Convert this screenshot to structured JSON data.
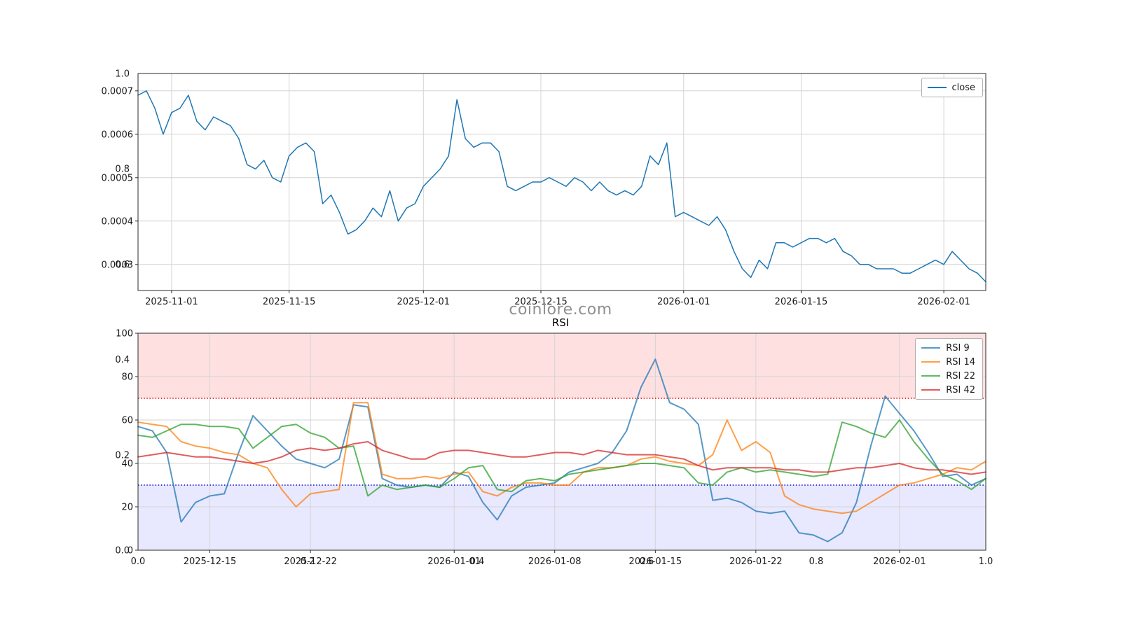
{
  "watermark": {
    "text": "coinlore.com"
  },
  "overlay_axis": {
    "yticks": [
      {
        "f": 1.0,
        "label": "1.0"
      },
      {
        "f": 0.8,
        "label": "0.8"
      },
      {
        "f": 0.6,
        "label": "0.6"
      },
      {
        "f": 0.4,
        "label": "0.4"
      },
      {
        "f": 0.2,
        "label": "0.2"
      },
      {
        "f": 0.0,
        "label": "0.0"
      }
    ],
    "xticks": [
      {
        "f": 0.0,
        "label": "0.0"
      },
      {
        "f": 0.2,
        "label": "0.2"
      },
      {
        "f": 0.4,
        "label": "0.4"
      },
      {
        "f": 0.6,
        "label": "0.6"
      },
      {
        "f": 0.8,
        "label": "0.8"
      },
      {
        "f": 1.0,
        "label": "1.0"
      }
    ]
  },
  "chart_data": [
    {
      "type": "line",
      "title": "",
      "x_range": [
        "2025-10-28",
        "2026-02-06"
      ],
      "ylim": [
        0.00024,
        0.00074
      ],
      "grid": true,
      "legend_position": "upper right",
      "yticks": [
        {
          "v": 0.0003,
          "label": "0.0003"
        },
        {
          "v": 0.0004,
          "label": "0.0004"
        },
        {
          "v": 0.0005,
          "label": "0.0005"
        },
        {
          "v": 0.0006,
          "label": "0.0006"
        },
        {
          "v": 0.0007,
          "label": "0.0007"
        }
      ],
      "xticks": [
        {
          "f": 0.0396,
          "label": "2025-11-01"
        },
        {
          "f": 0.1782,
          "label": "2025-11-15"
        },
        {
          "f": 0.3366,
          "label": "2025-12-01"
        },
        {
          "f": 0.4752,
          "label": "2025-12-15"
        },
        {
          "f": 0.6436,
          "label": "2026-01-01"
        },
        {
          "f": 0.7822,
          "label": "2026-01-15"
        },
        {
          "f": 0.9505,
          "label": "2026-02-01"
        }
      ],
      "legend": [
        {
          "label": "close",
          "color": "#1f77b4"
        }
      ],
      "series": [
        {
          "name": "close",
          "color": "#1f77b4",
          "width": 1.5,
          "values": [
            0.00069,
            0.0007,
            0.00066,
            0.0006,
            0.00065,
            0.00066,
            0.00069,
            0.00063,
            0.00061,
            0.00064,
            0.00063,
            0.00062,
            0.00059,
            0.00053,
            0.00052,
            0.00054,
            0.0005,
            0.00049,
            0.00055,
            0.00057,
            0.00058,
            0.00056,
            0.00044,
            0.00046,
            0.00042,
            0.00037,
            0.00038,
            0.0004,
            0.00043,
            0.00041,
            0.00047,
            0.0004,
            0.00043,
            0.00044,
            0.00048,
            0.0005,
            0.00052,
            0.00055,
            0.00068,
            0.00059,
            0.00057,
            0.00058,
            0.00058,
            0.00056,
            0.00048,
            0.00047,
            0.00048,
            0.00049,
            0.00049,
            0.0005,
            0.00049,
            0.00048,
            0.0005,
            0.00049,
            0.00047,
            0.00049,
            0.00047,
            0.00046,
            0.00047,
            0.00046,
            0.00048,
            0.00055,
            0.00053,
            0.00058,
            0.00041,
            0.00042,
            0.00041,
            0.0004,
            0.00039,
            0.00041,
            0.00038,
            0.00033,
            0.00029,
            0.00027,
            0.00031,
            0.00029,
            0.00035,
            0.00035,
            0.00034,
            0.00035,
            0.00036,
            0.00036,
            0.00035,
            0.00036,
            0.00033,
            0.00032,
            0.0003,
            0.0003,
            0.00029,
            0.00029,
            0.00029,
            0.00028,
            0.00028,
            0.00029,
            0.0003,
            0.00031,
            0.0003,
            0.00033,
            0.00031,
            0.00029,
            0.00028,
            0.00026
          ]
        }
      ]
    },
    {
      "type": "line",
      "title": "RSI",
      "x_range": [
        "2025-12-10",
        "2026-02-07"
      ],
      "ylim": [
        0,
        100
      ],
      "grid": true,
      "legend_position": "upper right",
      "yticks": [
        {
          "v": 0,
          "label": "0"
        },
        {
          "v": 20,
          "label": "20"
        },
        {
          "v": 40,
          "label": "40"
        },
        {
          "v": 60,
          "label": "60"
        },
        {
          "v": 80,
          "label": "80"
        },
        {
          "v": 100,
          "label": "100"
        }
      ],
      "xticks": [
        {
          "f": 0.0847,
          "label": "2025-12-15"
        },
        {
          "f": 0.2034,
          "label": "2025-12-22"
        },
        {
          "f": 0.3729,
          "label": "2026-01-01"
        },
        {
          "f": 0.4915,
          "label": "2026-01-08"
        },
        {
          "f": 0.6102,
          "label": "2026-01-15"
        },
        {
          "f": 0.7288,
          "label": "2026-01-22"
        },
        {
          "f": 0.8983,
          "label": "2026-02-01"
        }
      ],
      "bands": [
        {
          "from": 70,
          "to": 100,
          "color": "rgba(255,0,0,0.12)",
          "meaning": "overbought"
        },
        {
          "from": 0,
          "to": 30,
          "color": "rgba(46,46,255,0.11)",
          "meaning": "oversold"
        }
      ],
      "hlines": [
        {
          "y": 70,
          "color": "#dd0000",
          "dash": "1.5 2.6"
        },
        {
          "y": 30,
          "color": "#0000cc",
          "dash": "1.5 2.6"
        }
      ],
      "legend": [
        {
          "label": "RSI 9",
          "color": "rgba(31,119,180,0.75)"
        },
        {
          "label": "RSI 14",
          "color": "rgba(255,127,14,0.75)"
        },
        {
          "label": "RSI 22",
          "color": "rgba(44,160,44,0.75)"
        },
        {
          "label": "RSI 42",
          "color": "rgba(214,39,40,0.75)"
        }
      ],
      "series": [
        {
          "name": "RSI 9",
          "color": "rgba(31,119,180,0.75)",
          "width": 2,
          "values": [
            57,
            55,
            45,
            13,
            22,
            25,
            26,
            45,
            62,
            55,
            48,
            42,
            40,
            38,
            42,
            67,
            66,
            33,
            30,
            29,
            30,
            29,
            36,
            34,
            22,
            14,
            25,
            29,
            30,
            31,
            36,
            38,
            40,
            45,
            55,
            75,
            88,
            68,
            65,
            58,
            23,
            24,
            22,
            18,
            17,
            18,
            8,
            7,
            4,
            8,
            22,
            48,
            71,
            63,
            55,
            45,
            34,
            35,
            30,
            33
          ]
        },
        {
          "name": "RSI 14",
          "color": "rgba(255,127,14,0.75)",
          "width": 2,
          "values": [
            59,
            58,
            57,
            50,
            48,
            47,
            45,
            44,
            40,
            38,
            28,
            20,
            26,
            27,
            28,
            68,
            68,
            35,
            33,
            33,
            34,
            33,
            35,
            36,
            27,
            25,
            29,
            31,
            31,
            30,
            30,
            36,
            38,
            38,
            39,
            42,
            43,
            41,
            40,
            39,
            44,
            60,
            46,
            50,
            45,
            25,
            21,
            19,
            18,
            17,
            18,
            22,
            26,
            30,
            31,
            33,
            35,
            38,
            37,
            41
          ]
        },
        {
          "name": "RSI 22",
          "color": "rgba(44,160,44,0.75)",
          "width": 2,
          "values": [
            53,
            52,
            55,
            58,
            58,
            57,
            57,
            56,
            47,
            52,
            57,
            58,
            54,
            52,
            47,
            48,
            25,
            30,
            28,
            29,
            30,
            29,
            33,
            38,
            39,
            28,
            27,
            32,
            33,
            32,
            35,
            36,
            37,
            38,
            39,
            40,
            40,
            39,
            38,
            31,
            30,
            36,
            38,
            36,
            37,
            36,
            35,
            34,
            35,
            59,
            57,
            54,
            52,
            60,
            50,
            42,
            35,
            32,
            28,
            33
          ]
        },
        {
          "name": "RSI 42",
          "color": "rgba(214,39,40,0.75)",
          "width": 2,
          "values": [
            43,
            44,
            45,
            44,
            43,
            43,
            42,
            41,
            40,
            41,
            43,
            46,
            47,
            46,
            47,
            49,
            50,
            46,
            44,
            42,
            42,
            45,
            46,
            46,
            45,
            44,
            43,
            43,
            44,
            45,
            45,
            44,
            46,
            45,
            44,
            44,
            44,
            43,
            42,
            39,
            37,
            38,
            38,
            38,
            38,
            37,
            37,
            36,
            36,
            37,
            38,
            38,
            39,
            40,
            38,
            37,
            37,
            36,
            35,
            36
          ]
        }
      ]
    }
  ]
}
